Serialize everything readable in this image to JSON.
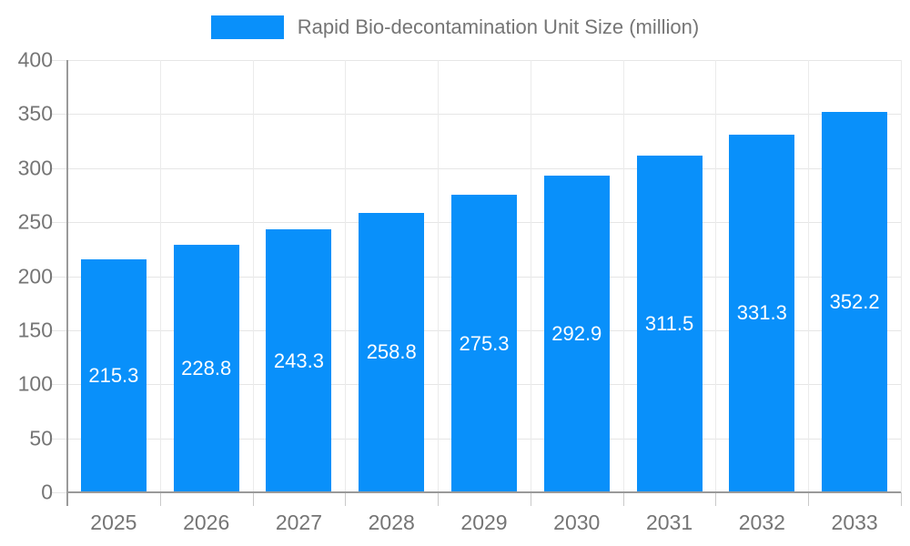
{
  "chart_data": {
    "type": "bar",
    "title": "Rapid Bio-decontamination Unit Size (million)",
    "categories": [
      "2025",
      "2026",
      "2027",
      "2028",
      "2029",
      "2030",
      "2031",
      "2032",
      "2033"
    ],
    "values": [
      215.3,
      228.8,
      243.3,
      258.8,
      275.3,
      292.9,
      311.5,
      331.3,
      352.2
    ],
    "series": [
      {
        "name": "Rapid Bio-decontamination Unit Size (million)",
        "values": [
          215.3,
          228.8,
          243.3,
          258.8,
          275.3,
          292.9,
          311.5,
          331.3,
          352.2
        ]
      }
    ],
    "xlabel": "",
    "ylabel": "",
    "ylim": [
      0,
      400
    ],
    "ytick_step": 50,
    "yticks": [
      0,
      50,
      100,
      150,
      200,
      250,
      300,
      350,
      400
    ],
    "grid": true,
    "legend_position": "top-center",
    "value_labels": "inside-center-white",
    "colors": {
      "bar": "#0990fa",
      "bar_label_text": "#ffffff",
      "axis_text": "#757575",
      "legend_text": "#757575",
      "grid_line": "#e6e6e6",
      "axis_line": "#9a9a9a",
      "background": "#ffffff"
    }
  }
}
